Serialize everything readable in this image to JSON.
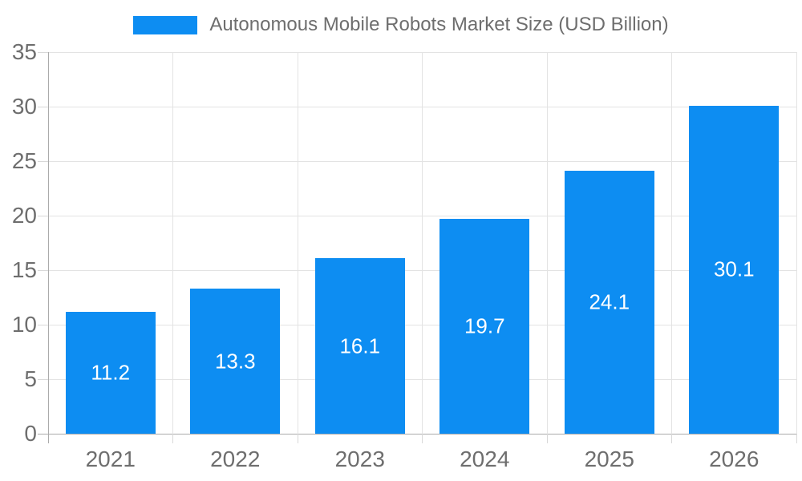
{
  "chart_data": {
    "type": "bar",
    "title": "Autonomous Mobile Robots Market Size (USD Billion)",
    "series_name": "Autonomous Mobile Robots Market Size (USD Billion)",
    "categories": [
      "2021",
      "2022",
      "2023",
      "2024",
      "2025",
      "2026"
    ],
    "values": [
      11.2,
      13.3,
      16.1,
      19.7,
      24.1,
      30.1
    ],
    "xlabel": "",
    "ylabel": "",
    "ylim": [
      0,
      35
    ],
    "yticks": [
      0,
      5,
      10,
      15,
      20,
      25,
      30,
      35
    ],
    "grid": true,
    "legend_position": "top",
    "value_label_position": "center",
    "colors": {
      "bar": "#0d8df2",
      "value_label": "#ffffff",
      "axis_text": "#6e6e6e",
      "legend_text": "#6e6e6e",
      "grid_line": "#e3e3e3",
      "tick_line": "#d8d8d8",
      "axis_line": "#ababab",
      "background": "#ffffff"
    }
  }
}
